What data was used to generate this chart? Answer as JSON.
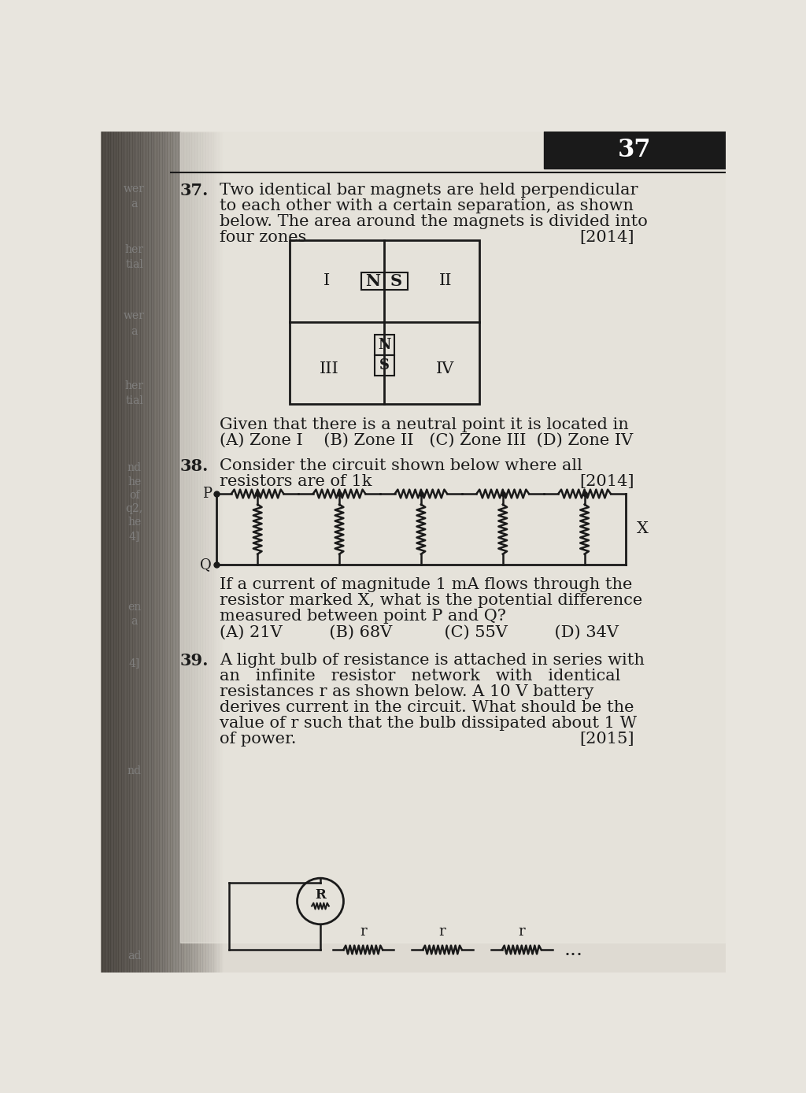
{
  "page_number": "37",
  "bg_color": "#e8e5de",
  "paper_color": "#e8e5de",
  "text_color": "#1a1a1a",
  "q37_number": "37.",
  "q37_text_line1": "Two identical bar magnets are held perpendicular",
  "q37_text_line2": "to each other with a certain separation, as shown",
  "q37_text_line3": "below. The area around the magnets is divided into",
  "q37_text_line4": "four zones",
  "q37_year": "[2014]",
  "q37_answer_line1": "Given that there is a neutral point it is located in",
  "q37_answer_line2": "(A) Zone I    (B) Zone II   (C) Zone III  (D) Zone IV",
  "q38_number": "38.",
  "q38_text_line1": "Consider the circuit shown below where all",
  "q38_text_line2": "resistors are of 1k",
  "q38_year": "[2014]",
  "q38_answer_line1": "If a current of magnitude 1 mA flows through the",
  "q38_answer_line2": "resistor marked X, what is the potential difference",
  "q38_answer_line3": "measured between point P and Q?",
  "q38_choices": "(A) 21V         (B) 68V          (C) 55V         (D) 34V",
  "q39_number": "39.",
  "q39_text_line1": "A light bulb of resistance is attached in series with",
  "q39_text_line2": "an   infinite   resistor   network   with   identical",
  "q39_text_line3": "resistances r as shown below. A 10 V battery",
  "q39_text_line4": "derives current in the circuit. What should be the",
  "q39_text_line5": "value of r such that the bulb dissipated about 1 W",
  "q39_text_line6": "of power.",
  "q39_year": "[2015]",
  "sidebar_color": "#c8c4bc",
  "shadow_color": "#a8a49c",
  "left_sidebar_texts_top": [
    "wer",
    "a",
    "her",
    "tial",
    "wer",
    "a",
    "her",
    "tial"
  ],
  "left_sidebar_texts_mid": [
    "nd",
    "he",
    "of",
    "q2,",
    "he",
    "4]"
  ],
  "left_sidebar_texts_bot": [
    "en",
    "a",
    "4]",
    "nd",
    "ad"
  ]
}
